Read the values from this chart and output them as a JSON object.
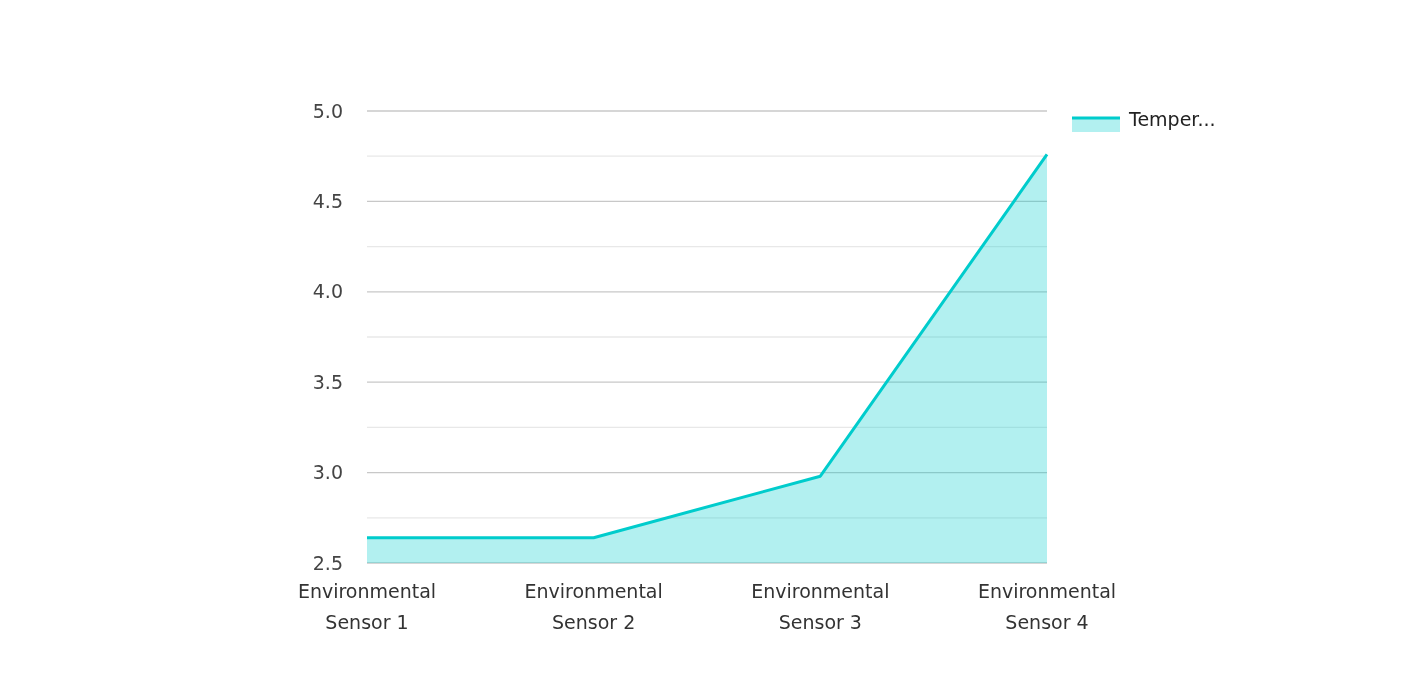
{
  "chart_data": {
    "type": "area",
    "categories": [
      "Environmental Sensor 1",
      "Environmental Sensor 2",
      "Environmental Sensor 3",
      "Environmental Sensor 4"
    ],
    "series": [
      {
        "name": "Temper...",
        "color": "#00cccc",
        "values": [
          2.64,
          2.64,
          2.98,
          4.76
        ]
      }
    ],
    "ylim": [
      2.5,
      5.0
    ],
    "yticks": [
      2.5,
      {
        "value": 2.75,
        "label": null
      },
      {
        "value": 3,
        "label": "3.0"
      },
      {
        "value": 3.25,
        "label": null
      },
      3.5,
      {
        "value": 3.75,
        "label": null
      },
      {
        "value": 4,
        "label": "4.0"
      },
      {
        "value": 4.25,
        "label": null
      },
      4.5,
      {
        "value": 4.75,
        "label": null
      },
      {
        "value": 5,
        "label": "5.0"
      }
    ],
    "grid": "y",
    "legend": "top right"
  }
}
